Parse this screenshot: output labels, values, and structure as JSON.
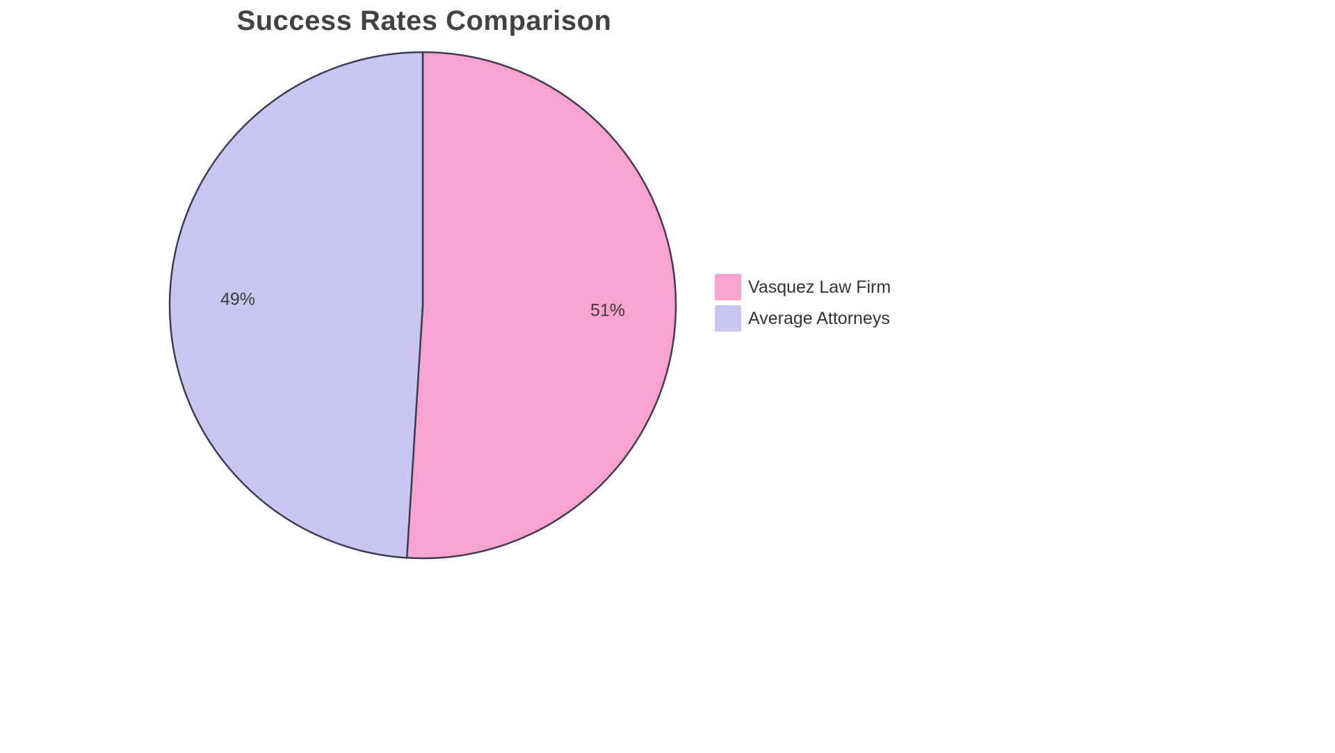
{
  "chart_data": {
    "type": "pie",
    "title": "Success Rates Comparison",
    "legend_position": "right",
    "start_angle": "top",
    "direction": "clockwise",
    "slice_border_color": "#3d3b54",
    "background_color": "#ffffff",
    "series": [
      {
        "name": "Vasquez Law Firm",
        "value": 51,
        "label": "51%",
        "color": "#f8a3cf"
      },
      {
        "name": "Average Attorneys",
        "value": 49,
        "label": "49%",
        "color": "#c9c6f2"
      }
    ]
  }
}
